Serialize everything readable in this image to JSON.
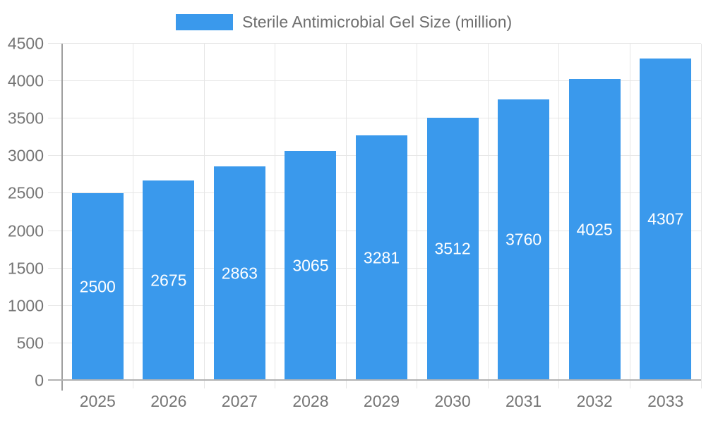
{
  "legend": {
    "label": "Sterile Antimicrobial Gel Size (million)"
  },
  "chart_data": {
    "type": "bar",
    "title": "Sterile Antimicrobial Gel Size (million)",
    "categories": [
      "2025",
      "2026",
      "2027",
      "2028",
      "2029",
      "2030",
      "2031",
      "2032",
      "2033"
    ],
    "values": [
      2500,
      2675,
      2863,
      3065,
      3281,
      3512,
      3760,
      4025,
      4307
    ],
    "xlabel": "",
    "ylabel": "",
    "ylim": [
      0,
      4500
    ],
    "yticks": [
      0,
      500,
      1000,
      1500,
      2000,
      2500,
      3000,
      3500,
      4000,
      4500
    ],
    "grid": true,
    "legend_position": "top",
    "value_labels": "inside-center",
    "colors": {
      "bar": "#3A99EC",
      "value_label": "#FFFFFF",
      "axis_label": "#757575",
      "legend_text": "#6E6E6E",
      "gridline": "#E6E6E6",
      "baseline": "#B3B3B3",
      "axis_line": "#9E9E9E",
      "background": "#FFFFFF"
    }
  }
}
